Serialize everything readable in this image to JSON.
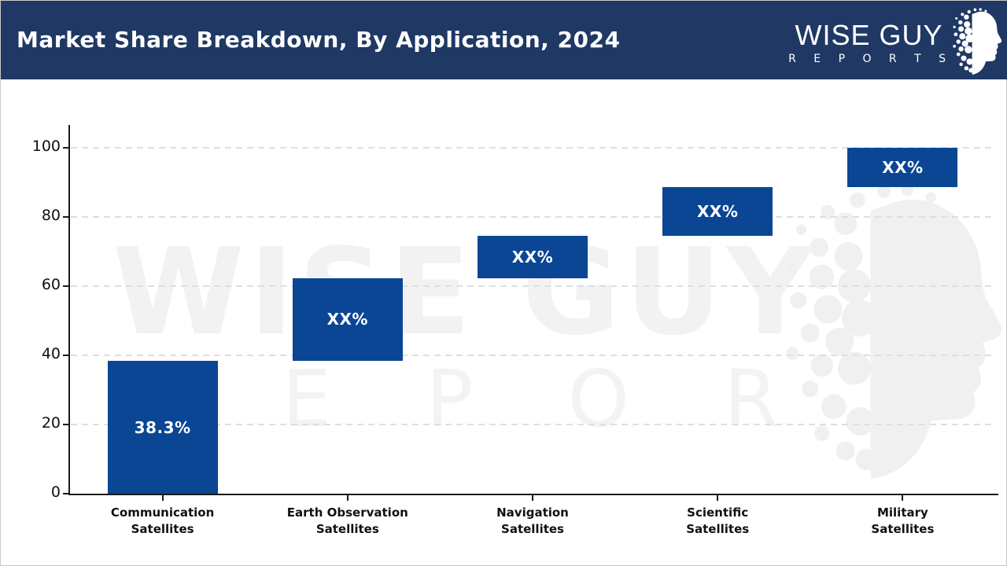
{
  "header": {
    "title": "Market Share Breakdown, By Application, 2024",
    "logo": {
      "line1": "WISE GUY",
      "line2": "R E P O R T S"
    }
  },
  "watermark": {
    "line1": "WISE GUY",
    "line2": "R E P O R T S"
  },
  "chart_data": {
    "type": "bar",
    "variant": "waterfall",
    "title": "Market Share Breakdown, By Application, 2024",
    "categories": [
      [
        "Communication",
        "Satellites"
      ],
      [
        "Earth Observation",
        "Satellites"
      ],
      [
        "Navigation",
        "Satellites"
      ],
      [
        "Scientific",
        "Satellites"
      ],
      [
        "Military",
        "Satellites"
      ]
    ],
    "segments": [
      {
        "start": 0,
        "end": 38.3,
        "label": "38.3%"
      },
      {
        "start": 38.3,
        "end": 62.3,
        "label": "XX%"
      },
      {
        "start": 62.3,
        "end": 74.4,
        "label": "XX%"
      },
      {
        "start": 74.4,
        "end": 88.6,
        "label": "XX%"
      },
      {
        "start": 88.6,
        "end": 100,
        "label": "XX%"
      }
    ],
    "yticks": [
      0,
      20,
      40,
      60,
      80,
      100
    ],
    "ylim": [
      0,
      106.5
    ],
    "xlabel": "",
    "ylabel": "",
    "grid": "dashed-horizontal",
    "legend": "none",
    "bar_color": "#0a4694",
    "bar_label_color": "#ffffff",
    "axis_color": "#1a1a1a",
    "grid_color": "#dedede",
    "header_color": "#1f3864"
  }
}
